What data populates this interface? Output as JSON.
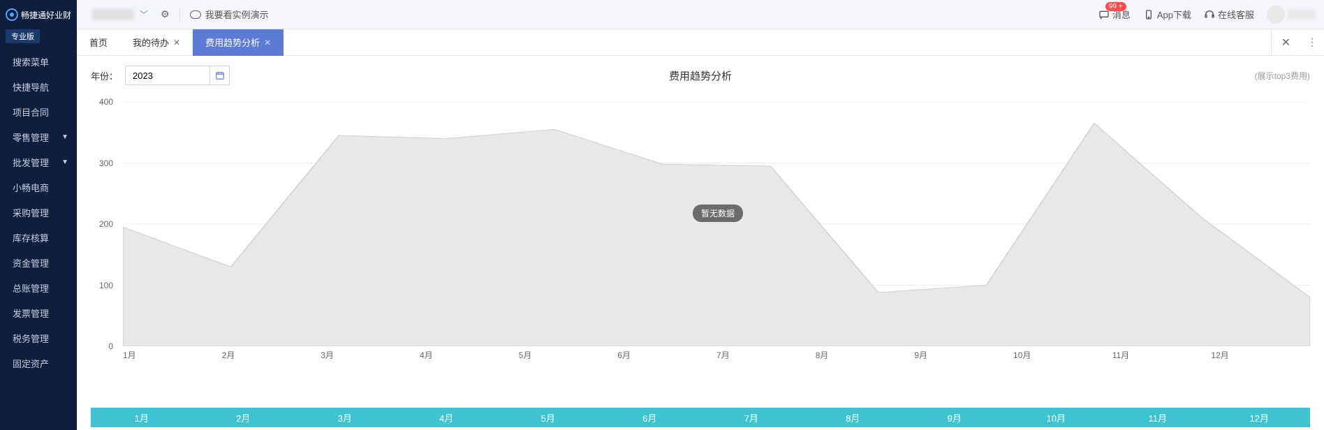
{
  "brand": {
    "name": "畅捷通好业财",
    "edition": "专业版"
  },
  "sidebar": {
    "items": [
      {
        "label": "搜索菜单",
        "caret": false
      },
      {
        "label": "快捷导航",
        "caret": false
      },
      {
        "label": "项目合同",
        "caret": false
      },
      {
        "label": "零售管理",
        "caret": true
      },
      {
        "label": "批发管理",
        "caret": true
      },
      {
        "label": "小畅电商",
        "caret": false
      },
      {
        "label": "采购管理",
        "caret": false
      },
      {
        "label": "库存核算",
        "caret": false
      },
      {
        "label": "资金管理",
        "caret": false
      },
      {
        "label": "总账管理",
        "caret": false
      },
      {
        "label": "发票管理",
        "caret": false
      },
      {
        "label": "税务管理",
        "caret": false
      },
      {
        "label": "固定资产",
        "caret": false
      }
    ]
  },
  "topbar": {
    "demo_label": "我要看实例演示",
    "message_label": "消息",
    "message_badge": "99 +",
    "app_label": "App下载",
    "service_label": "在线客服"
  },
  "tabs": [
    {
      "label": "首页",
      "closable": false,
      "active": false
    },
    {
      "label": "我的待办",
      "closable": true,
      "active": false
    },
    {
      "label": "费用趋势分析",
      "closable": true,
      "active": true
    }
  ],
  "filter": {
    "year_label": "年份：",
    "year_value": "2023"
  },
  "chart": {
    "title": "费用趋势分析",
    "note": "(展示top3费用)",
    "type": "area",
    "ylim": [
      0,
      400
    ],
    "ytick_step": 100,
    "yticks": [
      0,
      100,
      200,
      300,
      400
    ],
    "categories": [
      "1月",
      "2月",
      "3月",
      "4月",
      "5月",
      "6月",
      "7月",
      "8月",
      "9月",
      "10月",
      "11月",
      "12月"
    ],
    "values": [
      195,
      130,
      345,
      340,
      355,
      298,
      295,
      88,
      100,
      365,
      210,
      80
    ],
    "area_fill": "#e8e8e8",
    "area_stroke": "#d0d0d0",
    "grid_color": "#eeeeee",
    "background_color": "#ffffff",
    "label_fontsize": 12,
    "tooltip_text": "暂无数据",
    "tooltip_bg": "#6b6b6b"
  },
  "month_bar": {
    "bg": "#3dc4d0",
    "labels": [
      "1月",
      "2月",
      "3月",
      "4月",
      "5月",
      "6月",
      "7月",
      "8月",
      "9月",
      "10月",
      "11月",
      "12月"
    ]
  }
}
